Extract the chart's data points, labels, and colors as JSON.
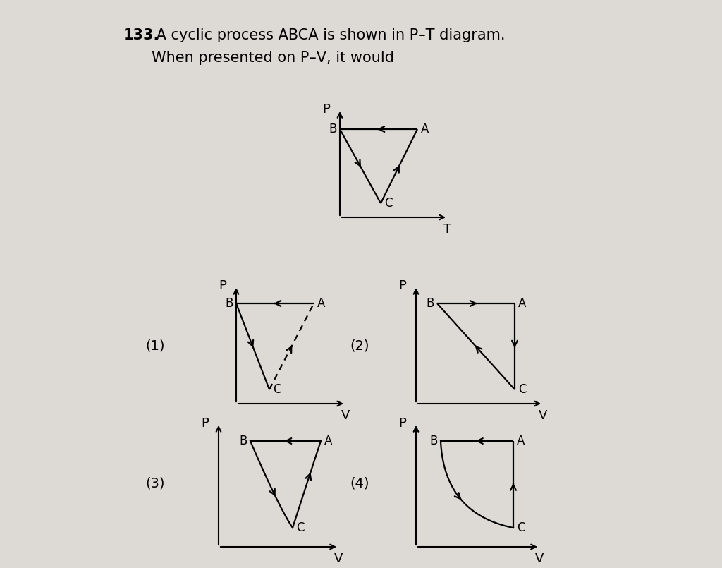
{
  "bg_color": "#c8c4bf",
  "paper_color": "#dddad5",
  "title_number": "133.",
  "title_text": " A cyclic process ABCA is shown in P–T diagram.",
  "subtitle_text": "When presented on P–V, it would",
  "title_fontsize": 15,
  "label_fontsize": 14,
  "axis_label_fontsize": 13,
  "point_label_fontsize": 12
}
